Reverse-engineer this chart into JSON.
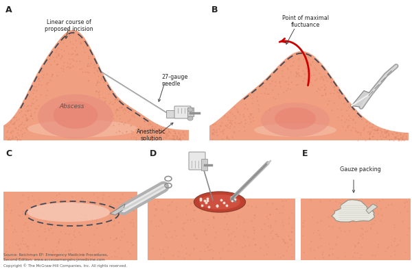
{
  "bg_color": "#ffffff",
  "skin_color": "#f0a080",
  "skin_light": "#f5c0a8",
  "skin_highlight": "#f8d0c0",
  "skin_dots": "#d07858",
  "abscess_color": "#e06858",
  "abscess_light": "#e89080",
  "dashed_color": "#404858",
  "red_arrow_color": "#cc0000",
  "panel_labels": [
    "A",
    "B",
    "C",
    "D",
    "E"
  ],
  "source_text": "Source: Reichman EF: Emergency Medicine Procedures,\nSecond Edition: www.accessemergencymedicine.com\nCopyright © The McGraw-Hill Companies, Inc. All rights reserved.",
  "label_A1": "Linear course of\nproposed incision",
  "label_A2": "27-gauge\nneedle",
  "label_A3": "Abscess",
  "label_A4": "Anesthetic\nsolution",
  "label_B1": "Point of maximal\nfluctuance",
  "label_E": "Gauze packing"
}
